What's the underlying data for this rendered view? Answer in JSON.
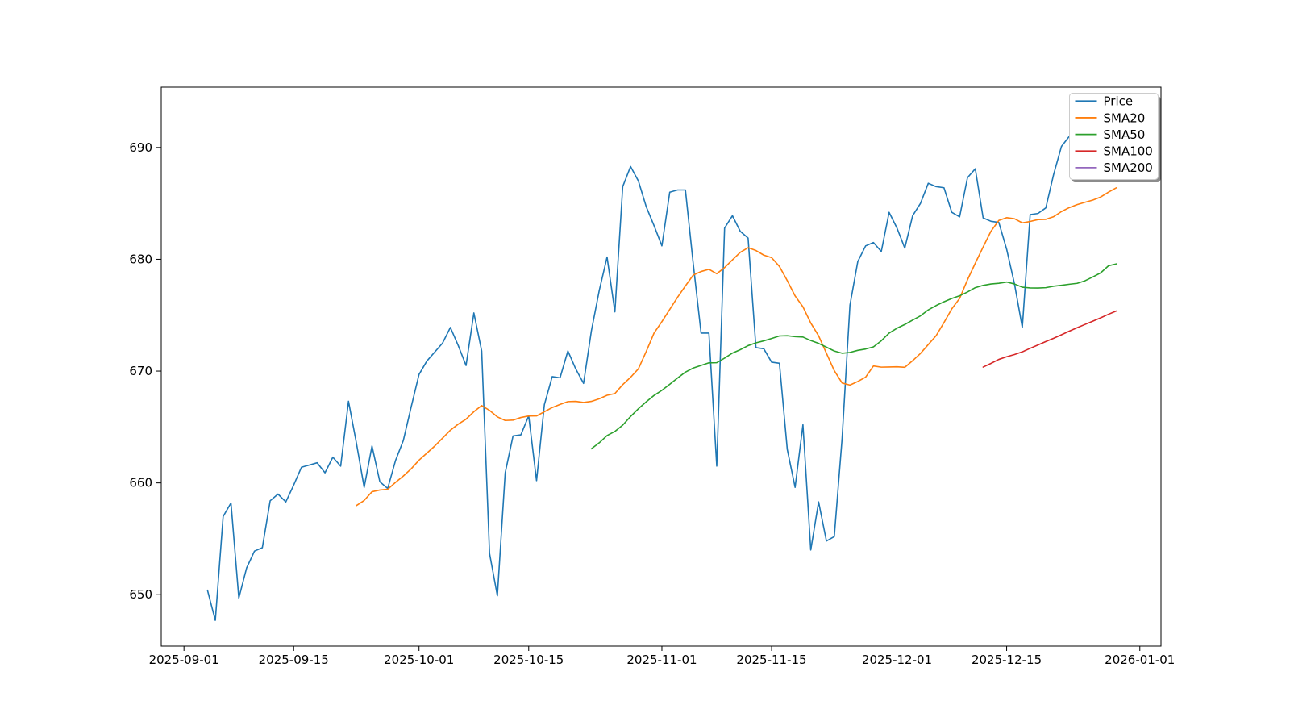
{
  "figure": {
    "background": "#ffffff"
  },
  "chart_data": {
    "type": "line",
    "title": "",
    "xlabel": "",
    "ylabel": "",
    "grid": false,
    "legend_position": "upper right",
    "epoch": "2025-09-01",
    "xlim_days_from_epoch": [
      -2.9,
      124.7
    ],
    "ylim": [
      645.4,
      695.4
    ],
    "x_ticks": [
      "2025-09-01",
      "2025-09-15",
      "2025-10-01",
      "2025-10-15",
      "2025-11-01",
      "2025-11-15",
      "2025-12-01",
      "2025-12-15",
      "2026-01-01"
    ],
    "y_ticks": [
      "650",
      "660",
      "670",
      "680",
      "690"
    ],
    "x": [
      "2025-09-04",
      "2025-09-05",
      "2025-09-06",
      "2025-09-07",
      "2025-09-08",
      "2025-09-09",
      "2025-09-10",
      "2025-09-11",
      "2025-09-12",
      "2025-09-13",
      "2025-09-14",
      "2025-09-15",
      "2025-09-16",
      "2025-09-17",
      "2025-09-18",
      "2025-09-19",
      "2025-09-20",
      "2025-09-21",
      "2025-09-22",
      "2025-09-23",
      "2025-09-24",
      "2025-09-25",
      "2025-09-26",
      "2025-09-27",
      "2025-09-28",
      "2025-09-29",
      "2025-09-30",
      "2025-10-01",
      "2025-10-02",
      "2025-10-03",
      "2025-10-04",
      "2025-10-05",
      "2025-10-06",
      "2025-10-07",
      "2025-10-08",
      "2025-10-09",
      "2025-10-10",
      "2025-10-11",
      "2025-10-12",
      "2025-10-13",
      "2025-10-14",
      "2025-10-15",
      "2025-10-16",
      "2025-10-17",
      "2025-10-18",
      "2025-10-19",
      "2025-10-20",
      "2025-10-21",
      "2025-10-22",
      "2025-10-23",
      "2025-10-24",
      "2025-10-25",
      "2025-10-26",
      "2025-10-27",
      "2025-10-28",
      "2025-10-29",
      "2025-10-30",
      "2025-10-31",
      "2025-11-01",
      "2025-11-02",
      "2025-11-03",
      "2025-11-04",
      "2025-11-05",
      "2025-11-06",
      "2025-11-07",
      "2025-11-08",
      "2025-11-09",
      "2025-11-10",
      "2025-11-11",
      "2025-11-12",
      "2025-11-13",
      "2025-11-14",
      "2025-11-15",
      "2025-11-16",
      "2025-11-17",
      "2025-11-18",
      "2025-11-19",
      "2025-11-20",
      "2025-11-21",
      "2025-11-22",
      "2025-11-23",
      "2025-11-24",
      "2025-11-25",
      "2025-11-26",
      "2025-11-27",
      "2025-11-28",
      "2025-11-29",
      "2025-11-30",
      "2025-12-01",
      "2025-12-02",
      "2025-12-03",
      "2025-12-04",
      "2025-12-05",
      "2025-12-06",
      "2025-12-07",
      "2025-12-08",
      "2025-12-09",
      "2025-12-10",
      "2025-12-11",
      "2025-12-12",
      "2025-12-13",
      "2025-12-14",
      "2025-12-15",
      "2025-12-16",
      "2025-12-17",
      "2025-12-18",
      "2025-12-19",
      "2025-12-20",
      "2025-12-21",
      "2025-12-22",
      "2025-12-23",
      "2025-12-24",
      "2025-12-25",
      "2025-12-26",
      "2025-12-27",
      "2025-12-28",
      "2025-12-29"
    ],
    "series": [
      {
        "name": "Price",
        "color": "#1f77b4",
        "window": null,
        "values": [
          650.4,
          647.7,
          657.0,
          658.2,
          649.7,
          652.4,
          653.9,
          654.2,
          658.4,
          659.0,
          658.3,
          659.8,
          661.4,
          661.6,
          661.8,
          660.9,
          662.3,
          661.5,
          667.3,
          663.6,
          659.6,
          663.3,
          660.1,
          659.5,
          662.0,
          663.8,
          666.8,
          669.7,
          670.9,
          671.7,
          672.5,
          673.9,
          672.3,
          670.5,
          675.2,
          671.8,
          653.7,
          649.9,
          660.9,
          664.2,
          664.3,
          666.0,
          660.2,
          667.0,
          669.5,
          669.4,
          671.8,
          670.2,
          668.9,
          673.6,
          677.2,
          680.2,
          675.3,
          686.5,
          688.3,
          687.0,
          684.7,
          683.0,
          681.2,
          686.0,
          686.2,
          686.2,
          679.6,
          673.4,
          673.4,
          661.5,
          682.8,
          683.9,
          682.5,
          681.9,
          672.1,
          672.0,
          670.8,
          670.7,
          663.0,
          659.6,
          665.2,
          654.0,
          658.3,
          654.8,
          655.2,
          664.0,
          675.9,
          679.8,
          681.2,
          681.5,
          680.7,
          684.2,
          682.8,
          681.0,
          683.9,
          685.0,
          686.8,
          686.5,
          686.4,
          684.2,
          683.8,
          687.3,
          688.1,
          683.7,
          683.4,
          683.3,
          680.9,
          677.8,
          673.9,
          684.0,
          684.1,
          684.6,
          687.6,
          690.1,
          691.0,
          690.3,
          691.0,
          690.5,
          691.8,
          693.0,
          691.5
        ]
      },
      {
        "name": "SMA20",
        "color": "#ff7f0e",
        "window": 20,
        "derived": "simple-moving-average-of-price"
      },
      {
        "name": "SMA50",
        "color": "#2ca02c",
        "window": 50,
        "derived": "simple-moving-average-of-price"
      },
      {
        "name": "SMA100",
        "color": "#d62728",
        "window": 100,
        "derived": "simple-moving-average-of-price"
      },
      {
        "name": "SMA200",
        "color": "#9467bd",
        "window": 200,
        "derived": "simple-moving-average-of-price"
      }
    ]
  }
}
